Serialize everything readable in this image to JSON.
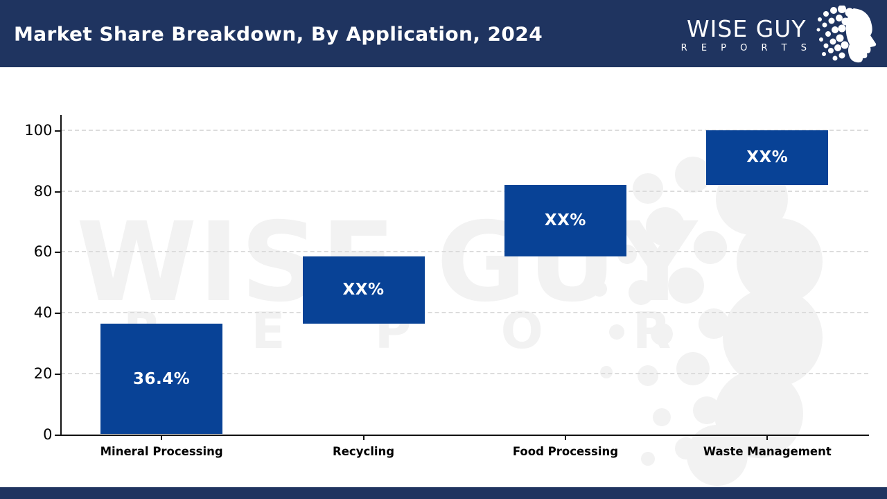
{
  "header": {
    "title": "Market Share Breakdown, By Application, 2024"
  },
  "logo": {
    "line1": "WISE GUY",
    "line2": "R E P O R T S"
  },
  "watermark": {
    "line1": "WISE GUY",
    "line2": "R E P O R T S"
  },
  "colors": {
    "header_bg": "#1F3460",
    "bar": "#084296",
    "bar_label": "#ffffff",
    "grid": "#dcdcdc",
    "watermark": "#f2f2f2",
    "axis": "#111111"
  },
  "chart_data": {
    "type": "bar",
    "subtype": "waterfall",
    "title": "Market Share Breakdown, By Application, 2024",
    "categories": [
      "Mineral Processing",
      "Recycling",
      "Food Processing",
      "Waste Management"
    ],
    "segments": [
      {
        "category": "Mineral Processing",
        "start": 0,
        "end": 36.4,
        "label": "36.4%"
      },
      {
        "category": "Recycling",
        "start": 36.4,
        "end": 58.5,
        "label": "XX%"
      },
      {
        "category": "Food Processing",
        "start": 58.5,
        "end": 82.0,
        "label": "XX%"
      },
      {
        "category": "Waste Management",
        "start": 82.0,
        "end": 100.0,
        "label": "XX%"
      }
    ],
    "xlabel": "",
    "ylabel": "",
    "yticks": [
      0,
      20,
      40,
      60,
      80,
      100
    ],
    "ylim": [
      0,
      105
    ],
    "grid": "horizontal-dashed",
    "legend": "none"
  }
}
